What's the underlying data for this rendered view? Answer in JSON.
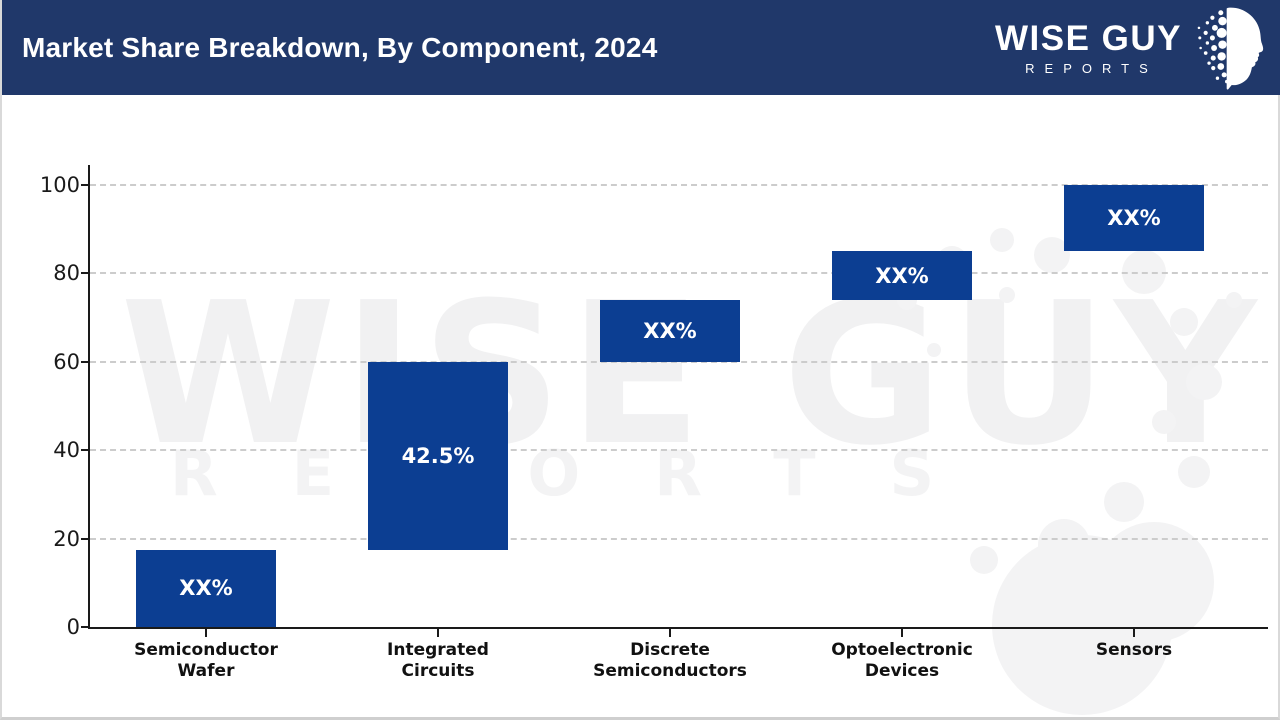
{
  "header": {
    "title": "Market Share Breakdown, By Component, 2024",
    "brand": {
      "line1": "WISE GUY",
      "line2": "REPORTS"
    }
  },
  "watermark": {
    "line1": "WISE GUY",
    "line2": "REPORTS"
  },
  "colors": {
    "header_navy": "#20386a",
    "bar_blue": "#0c3e92",
    "gridline_gray": "#cccccc",
    "axis_black": "#1a1a1a",
    "watermark_gray": "#f1f1f2"
  },
  "chart_data": {
    "type": "bar",
    "subtype": "waterfall",
    "title": "Market Share Breakdown, By Component, 2024",
    "categories": [
      "Semiconductor\nWafer",
      "Integrated\nCircuits",
      "Discrete\nSemiconductors",
      "Optoelectronic\nDevices",
      "Sensors"
    ],
    "bars": [
      {
        "label": "XX%",
        "start": 0,
        "end": 17.5
      },
      {
        "label": "42.5%",
        "start": 17.5,
        "end": 60
      },
      {
        "label": "XX%",
        "start": 60,
        "end": 74
      },
      {
        "label": "XX%",
        "start": 74,
        "end": 85
      },
      {
        "label": "XX%",
        "start": 85,
        "end": 100
      }
    ],
    "only_visible_value": "42.5% (Integrated Circuits); other bars masked as XX%",
    "yticks": [
      0,
      20,
      40,
      60,
      80,
      100
    ],
    "ylim": [
      0,
      100
    ],
    "xlabel": "",
    "ylabel": "",
    "legend": "none",
    "grid": "horizontal-dashed",
    "bar_color": "#0c3e92",
    "bar_label_color": "#ffffff"
  }
}
